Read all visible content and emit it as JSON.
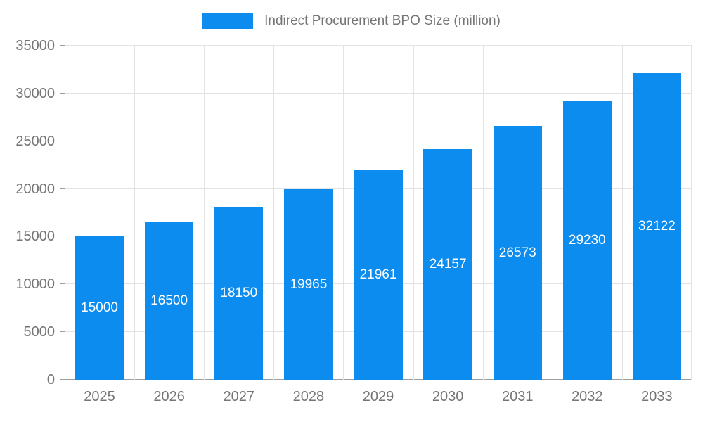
{
  "chart_data": {
    "type": "bar",
    "title": "Indirect Procurement BPO Size (million)",
    "categories": [
      "2025",
      "2026",
      "2027",
      "2028",
      "2029",
      "2030",
      "2031",
      "2032",
      "2033"
    ],
    "values": [
      15000,
      16500,
      18150,
      19965,
      21961,
      24157,
      26573,
      29230,
      32122
    ],
    "xlabel": "",
    "ylabel": "",
    "ylim": [
      0,
      35000
    ],
    "yticks": [
      0,
      5000,
      10000,
      15000,
      20000,
      25000,
      30000,
      35000
    ],
    "legend_position": "top",
    "grid": true,
    "bar_width_fraction": 0.7,
    "colors": {
      "bar": "#0d8cf0",
      "bar_label": "#ffffff",
      "axis_text": "#757575",
      "grid_line": "#e3e3e3",
      "axis_line": "#9e9e9e",
      "background": "#ffffff"
    }
  }
}
